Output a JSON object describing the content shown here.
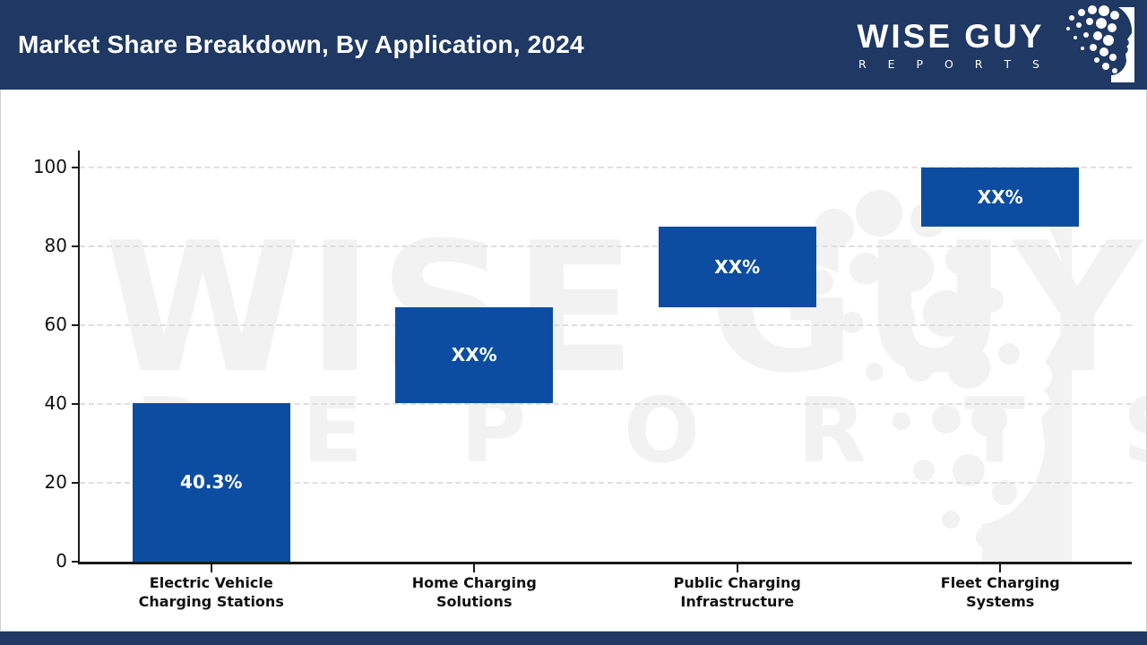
{
  "header": {
    "title": "Market Share Breakdown, By Application, 2024",
    "logo": {
      "brand_line1": "WISE GUY",
      "brand_line2": "R E P O R T S"
    }
  },
  "watermark": {
    "line1": "WISE GUY",
    "line2": "R E P O R T S"
  },
  "chart_data": {
    "type": "bar",
    "subtype": "waterfall",
    "title": "Market Share Breakdown, By Application, 2024",
    "categories": [
      "Electric Vehicle\nCharging Stations",
      "Home Charging\nSolutions",
      "Public Charging\nInfrastructure",
      "Fleet Charging\nSystems"
    ],
    "bars": [
      {
        "category": "Electric Vehicle Charging Stations",
        "start": 0,
        "end": 40.3,
        "value": 40.3,
        "display_label": "40.3%"
      },
      {
        "category": "Home Charging Solutions",
        "start": 40.3,
        "end": 64.5,
        "value": 24.2,
        "display_label": "XX%"
      },
      {
        "category": "Public Charging Infrastructure",
        "start": 64.5,
        "end": 85.0,
        "value": 20.5,
        "display_label": "XX%"
      },
      {
        "category": "Fleet Charging Systems",
        "start": 85.0,
        "end": 100.0,
        "value": 15.0,
        "display_label": "XX%"
      }
    ],
    "ylim": [
      0,
      100
    ],
    "yticks": [
      0,
      20,
      40,
      60,
      80,
      100
    ],
    "xlabel": "",
    "ylabel": "",
    "grid": "horizontal-dashed",
    "legend": "none"
  },
  "colors": {
    "header_bg": "#1f3864",
    "footer_bg": "#1f3864",
    "bar": "#0c4da2",
    "bar_label": "#ffffff",
    "grid": "#dedede",
    "axis": "#1a1a1a",
    "watermark": "#f2f2f3"
  }
}
